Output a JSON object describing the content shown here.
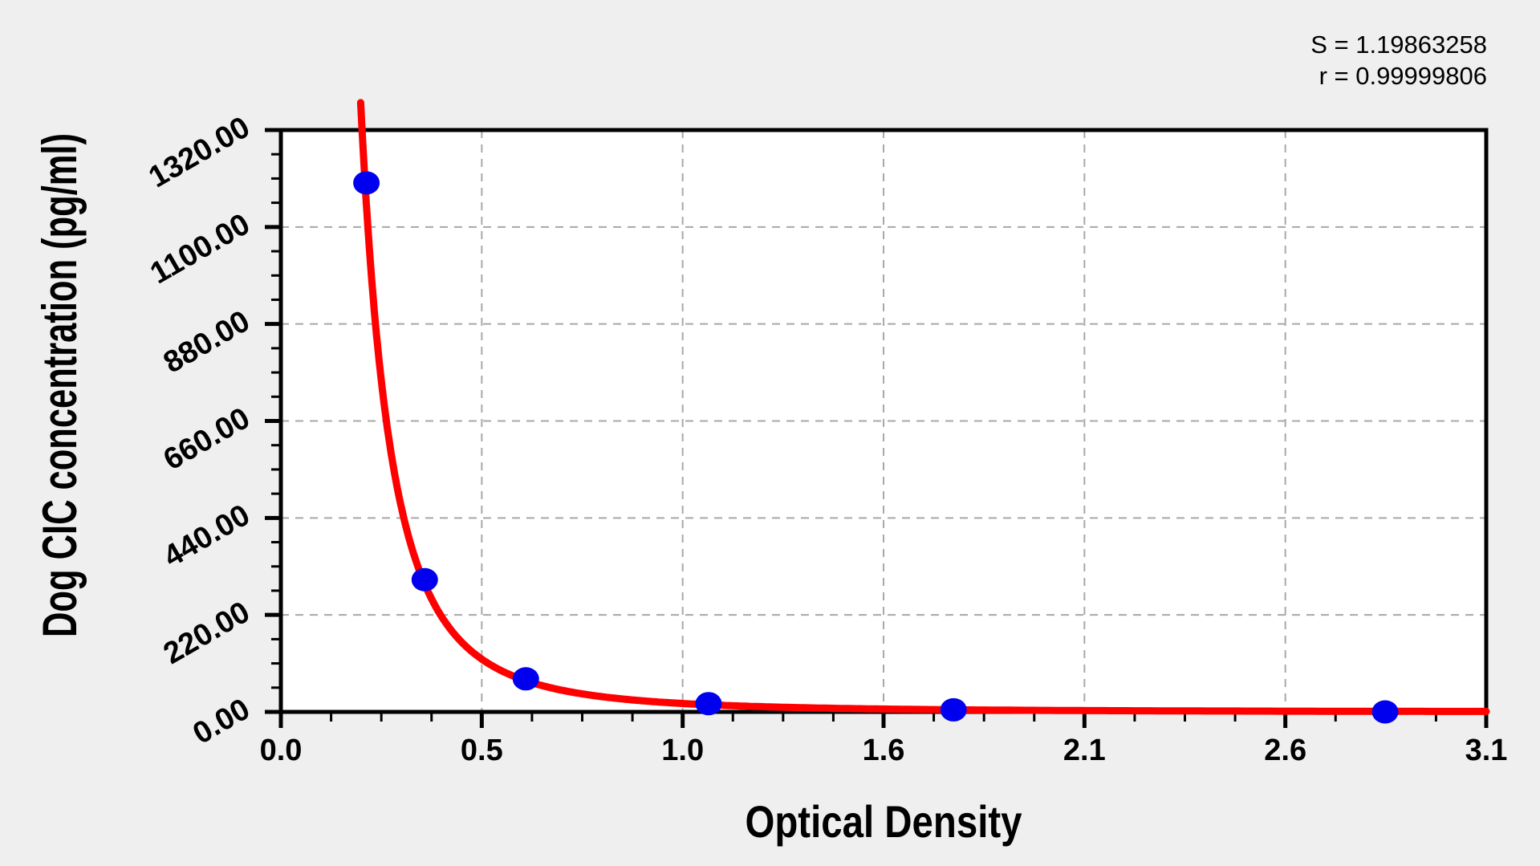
{
  "chart_data": {
    "type": "scatter",
    "title": "",
    "xlabel": "Optical Density",
    "ylabel": "Dog CIC concentration (pg/ml)",
    "xlim": [
      0,
      3.1
    ],
    "ylim": [
      0,
      1320
    ],
    "x_tick_labels": [
      "0.0",
      "0.5",
      "1.0",
      "1.6",
      "2.1",
      "2.6",
      "3.1"
    ],
    "x_tick_note": "7 evenly spaced major ticks from 0 to 3.1 (labels rounded to 1 decimal)",
    "y_tick_values": [
      0,
      220,
      440,
      660,
      880,
      1100,
      1320
    ],
    "y_tick_labels": [
      "0.00",
      "220.00",
      "440.00",
      "660.00",
      "880.00",
      "1100.00",
      "1320.00"
    ],
    "minor_divisions_per_major": 4,
    "grid": {
      "style": "dashed",
      "color": "#a8a8a8",
      "at": "major ticks"
    },
    "legend": "none",
    "series": [
      {
        "name": "standard points",
        "type": "scatter",
        "color": "#0000ee",
        "points": [
          {
            "od": 0.22,
            "conc": 1200
          },
          {
            "od": 0.37,
            "conc": 300
          },
          {
            "od": 0.63,
            "conc": 75
          },
          {
            "od": 1.1,
            "conc": 18.75
          },
          {
            "od": 1.73,
            "conc": 4.69
          },
          {
            "od": 2.84,
            "conc": 0
          }
        ]
      },
      {
        "name": "fitted standard curve",
        "type": "line",
        "color": "#ff0000",
        "fit": "power: conc ≈ 20.8 × OD^(-2.65)",
        "params": {
          "a": 20.8,
          "b": -2.65
        }
      }
    ],
    "stats": {
      "s_text": "S = 1.19863258",
      "r_text": "r = 0.99999806",
      "S": 1.19863258,
      "r": 0.99999806
    },
    "colors": {
      "background": "#efefef",
      "plot_background": "#ffffff",
      "axis": "#000000",
      "curve": "#ff0000",
      "points": "#0000ee",
      "gridlines": "#a8a8a8"
    }
  }
}
